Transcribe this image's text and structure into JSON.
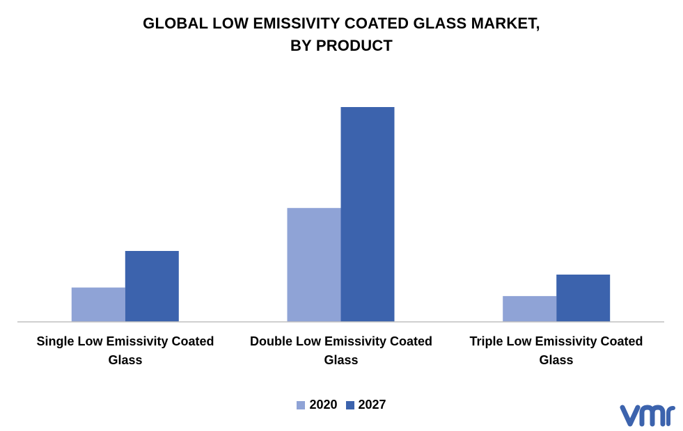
{
  "chart_data": {
    "type": "bar",
    "title_lines": [
      "GLOBAL LOW EMISSIVITY COATED GLASS MARKET,",
      "BY PRODUCT"
    ],
    "categories": [
      [
        "Single Low Emissivity Coated",
        "Glass"
      ],
      [
        "Double Low Emissivity Coated",
        "Glass"
      ],
      [
        "Triple Low Emissivity Coated",
        "Glass"
      ]
    ],
    "series": [
      {
        "name": "2020",
        "color": "#8FA3D6",
        "values": [
          16,
          53,
          12
        ]
      },
      {
        "name": "2027",
        "color": "#3C63AD",
        "values": [
          33,
          100,
          22
        ]
      }
    ],
    "ylim": [
      0,
      100
    ],
    "grid": false,
    "legend_position": "bottom",
    "axis_line_color": "#BFBFBF"
  },
  "logo": {
    "icon": "vmr-logo-icon",
    "color": "#3C63AD"
  }
}
